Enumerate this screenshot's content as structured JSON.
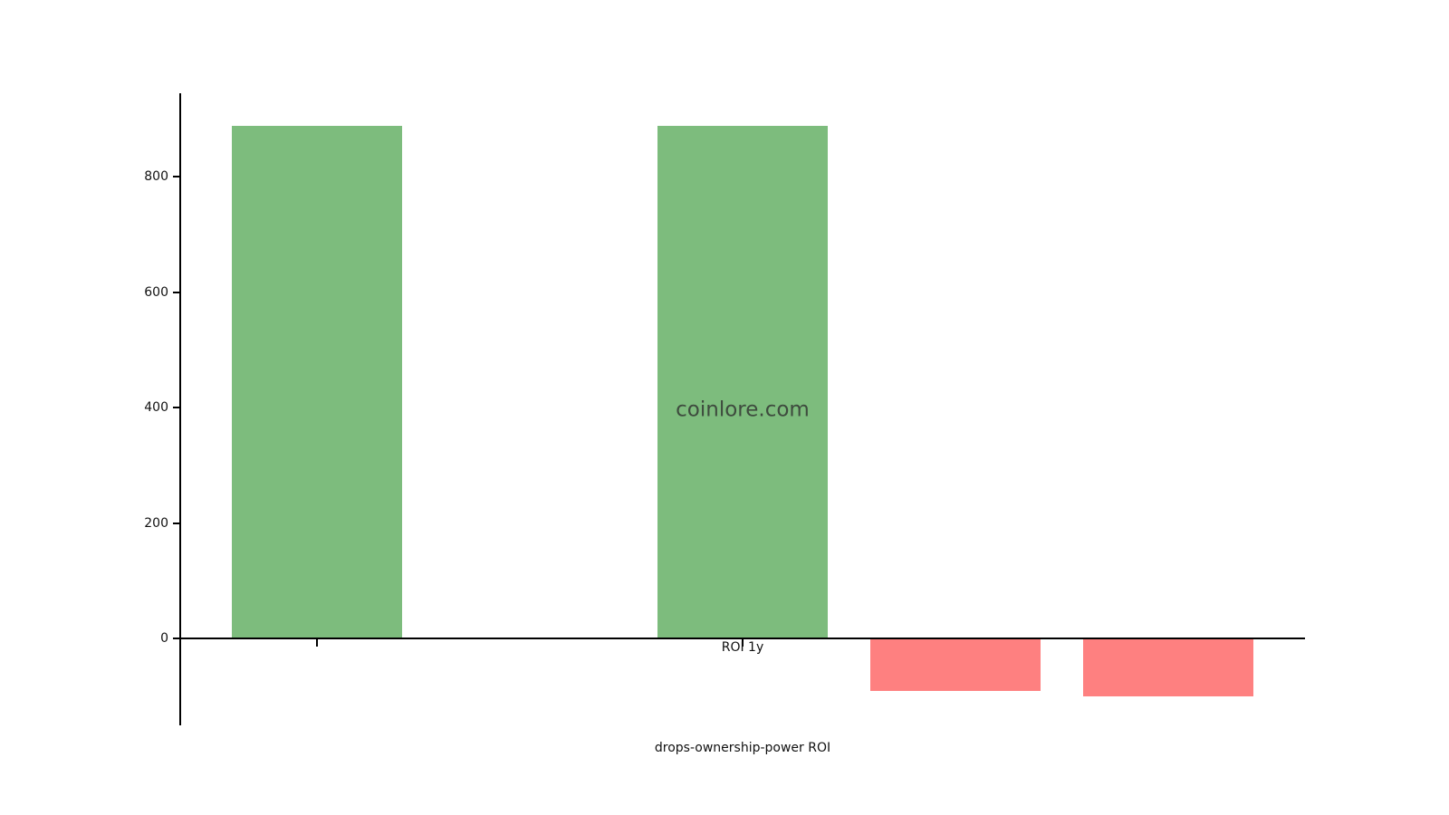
{
  "watermark": "coinlore.com",
  "chart_data": {
    "type": "bar",
    "title": "drops-ownership-power ROI",
    "title_position": "bottom",
    "categories": [
      "",
      "ROI 1y",
      "",
      ""
    ],
    "values": [
      888,
      888,
      -90,
      -100
    ],
    "bar_colors": [
      "#7dbc7d",
      "#7dbc7d",
      "#fe8080",
      "#fe8080"
    ],
    "positive_color": "#7dbc7d",
    "negative_color": "#fe8080",
    "yticks": [
      0,
      200,
      400,
      600,
      800
    ],
    "ylim": [
      -150,
      945
    ],
    "xlabel": "",
    "ylabel": "",
    "grid": false,
    "legend": null,
    "axis_color": "#000000",
    "background_color": "#ffffff"
  }
}
